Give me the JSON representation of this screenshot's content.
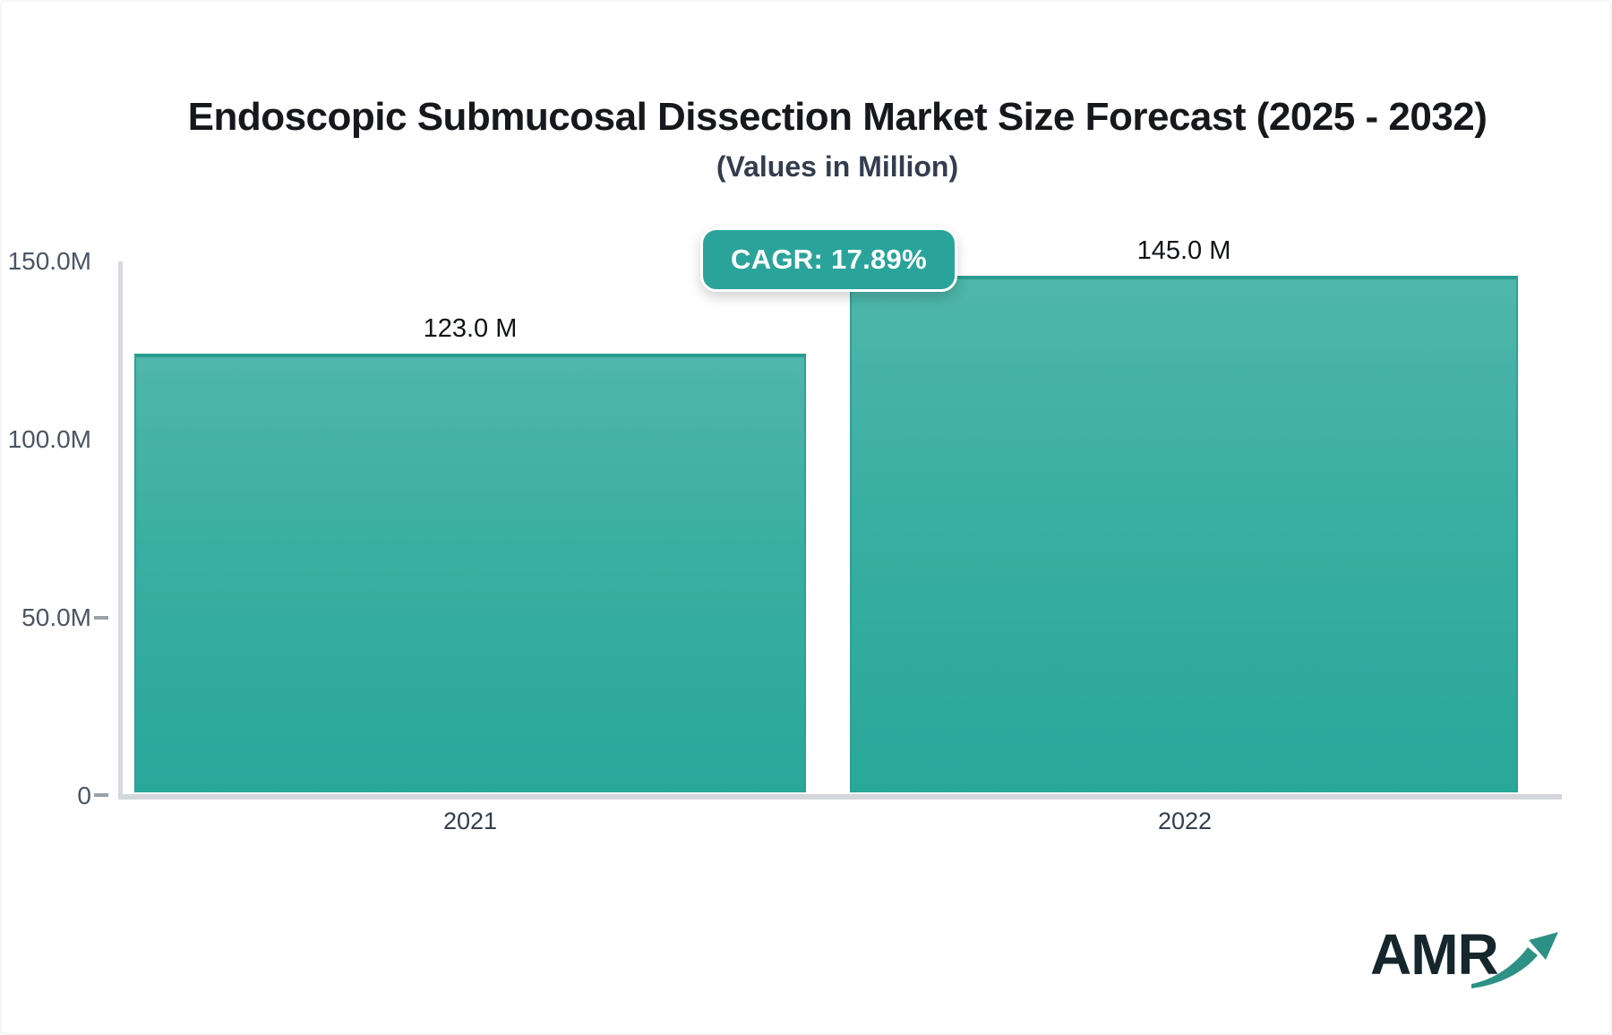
{
  "header": {
    "title": "Endoscopic Submucosal Dissection Market Size Forecast (2025 - 2032)",
    "subtitle": "(Values in Million)"
  },
  "badge": {
    "label": "CAGR: 17.89%"
  },
  "logo": {
    "text": "AMR"
  },
  "chart_data": {
    "type": "bar",
    "title": "Endoscopic Submucosal Dissection Market Size Forecast (2025 - 2032)",
    "subtitle": "(Values in Million)",
    "categories": [
      "2021",
      "2022"
    ],
    "values": [
      123.0,
      145.0
    ],
    "value_labels": [
      "123.0 M",
      "145.0 M"
    ],
    "unit": "Million",
    "cagr_percent": 17.89,
    "ylim": [
      0,
      150
    ],
    "y_ticks": [
      "150.0M",
      "100.0M",
      "50.0M",
      "0"
    ],
    "y_tick_values": [
      150,
      100,
      50,
      0
    ],
    "xlabel": "",
    "ylabel": "",
    "grid": false,
    "legend": "none",
    "colors": {
      "bar_gradient_top": "#4fb6ab",
      "bar_gradient_bottom": "#29a89a",
      "bar_border": "#2b9c91",
      "badge_background": "#2aa49a",
      "badge_text": "#ffffff",
      "axis_line": "#d4d7dc",
      "tick_label": "#4b5563",
      "title_text": "#16181c",
      "logo_text": "#15262d",
      "logo_arrow": "#2d9185"
    }
  }
}
